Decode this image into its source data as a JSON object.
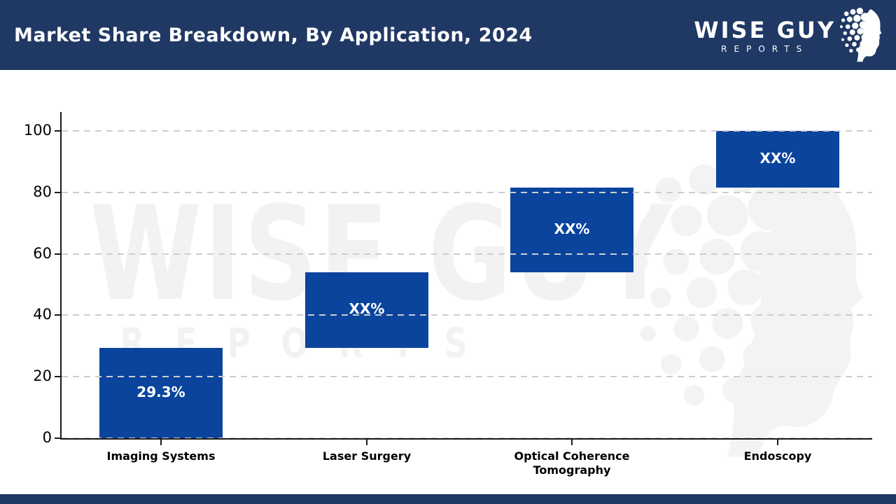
{
  "header": {
    "title": "Market Share Breakdown, By Application, 2024",
    "logo_line1": "WISE GUY",
    "logo_line2": "REPORTS",
    "bg_color": "#203864"
  },
  "watermark": {
    "line1": "WISE GUY",
    "line2": "REPORTS"
  },
  "chart_data": {
    "type": "bar",
    "subtype": "waterfall",
    "title": "Market Share Breakdown, By Application, 2024",
    "categories": [
      "Imaging Systems",
      "Laser Surgery",
      "Optical Coherence Tomography",
      "Endoscopy"
    ],
    "segments": [
      {
        "category": "Imaging Systems",
        "start": 0,
        "end": 29.3,
        "label": "29.3%"
      },
      {
        "category": "Laser Surgery",
        "start": 29.3,
        "end": 54,
        "label": "XX%"
      },
      {
        "category": "Optical Coherence Tomography",
        "start": 54,
        "end": 81.5,
        "label": "XX%"
      },
      {
        "category": "Endoscopy",
        "start": 81.5,
        "end": 100,
        "label": "XX%"
      },
      {
        "_note": ""
      }
    ],
    "yticks": [
      0,
      20,
      40,
      60,
      80,
      100
    ],
    "ylim": [
      0,
      100
    ],
    "xlabel": "",
    "ylabel": "",
    "grid": true,
    "gridline_style": "dashed",
    "legend": "none",
    "bar_color": "#0b449d",
    "bar_label_color": "#ffffff",
    "axis_color": "#1a1a1a",
    "gridline_color": "#cdcdcd"
  }
}
